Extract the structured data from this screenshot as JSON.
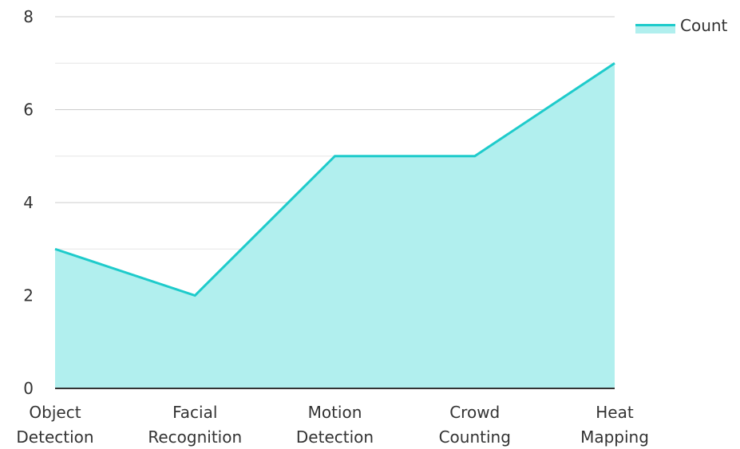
{
  "chart_data": {
    "type": "area",
    "categories": [
      [
        "Object",
        "Detection"
      ],
      [
        "Facial",
        "Recognition"
      ],
      [
        "Motion",
        "Detection"
      ],
      [
        "Crowd",
        "Counting"
      ],
      [
        "Heat",
        "Mapping"
      ]
    ],
    "series": [
      {
        "name": "Count",
        "values": [
          3,
          2,
          5,
          5,
          7
        ]
      }
    ],
    "title": "",
    "xlabel": "",
    "ylabel": "",
    "ylim": [
      0,
      8
    ],
    "yticks": [
      "0",
      "2",
      "4",
      "6",
      "8"
    ],
    "grid": true,
    "legend": "top-right",
    "colors": {
      "line": "#1ecbcb",
      "fill": "#b1efee",
      "grid_major": "#cccccc",
      "grid_minor": "#e6e6e6",
      "axis": "#333333"
    }
  }
}
